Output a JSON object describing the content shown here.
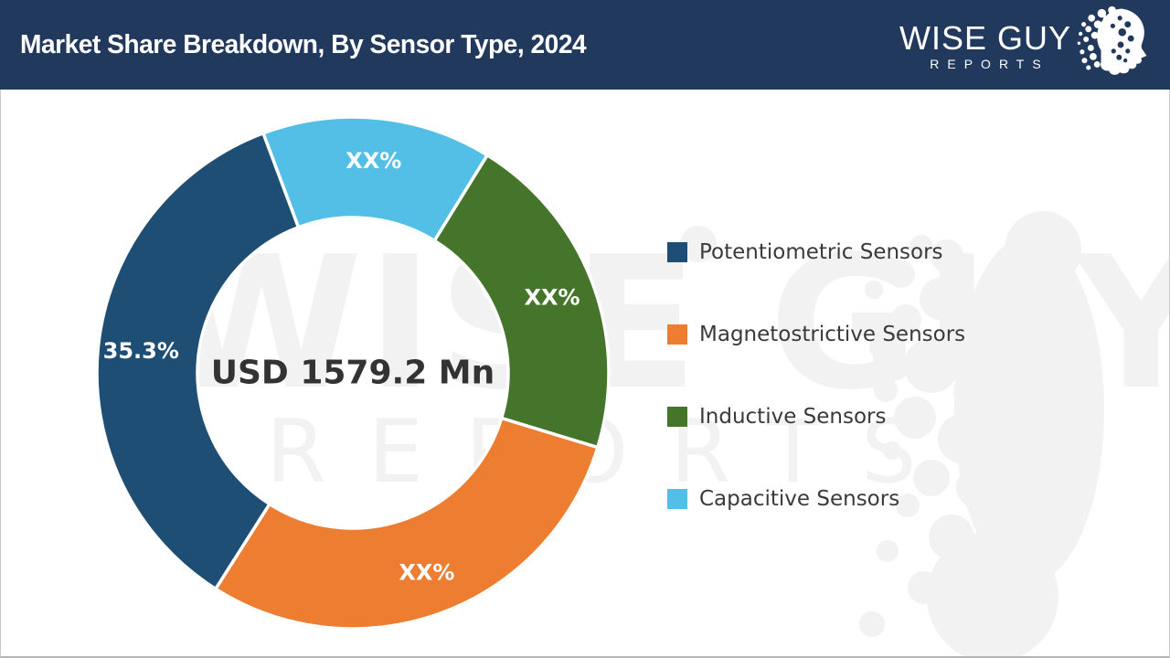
{
  "header": {
    "title": "Market Share Breakdown, By Sensor Type, 2024",
    "bg_color": "#22395E",
    "logo": {
      "line1": "WISE GUY",
      "line2": "REPORTS"
    }
  },
  "watermark": {
    "line1": "WISE GUY",
    "line2": "REPORTS"
  },
  "chart_data": {
    "type": "pie",
    "donut": true,
    "center_label": "USD 1579.2 Mn",
    "start_angle_deg": -20.5,
    "legend_position": "right",
    "grid": false,
    "slices": [
      {
        "name": "Potentiometric Sensors",
        "color": "#1F4E74",
        "value_pct": 35.3,
        "label": "35.3%"
      },
      {
        "name": "Magnetostrictive Sensors",
        "color": "#ED7D31",
        "value_pct": 29.3,
        "label": "XX%"
      },
      {
        "name": "Inductive Sensors",
        "color": "#44752A",
        "value_pct": 20.9,
        "label": "XX%"
      },
      {
        "name": "Capacitive Sensors",
        "color": "#53BFE6",
        "value_pct": 14.5,
        "label": "XX%"
      }
    ]
  }
}
